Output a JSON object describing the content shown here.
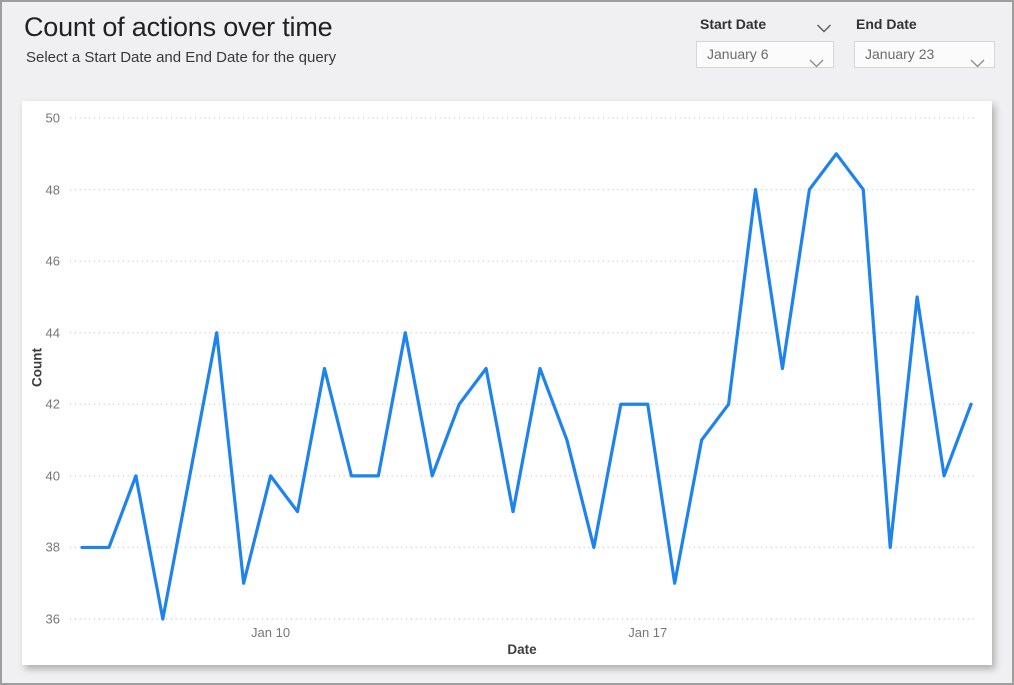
{
  "header": {
    "title": "Count of actions over time",
    "subtitle": "Select a Start Date and End Date for the query"
  },
  "slicers": {
    "start_date": {
      "label": "Start Date",
      "value": "January 6",
      "header_icon": "chevron-down"
    },
    "end_date": {
      "label": "End Date",
      "value": "January 23"
    }
  },
  "chart_data": {
    "type": "line",
    "title": "Count of actions over time",
    "xlabel": "Date",
    "ylabel": "Count",
    "ylim": [
      36,
      50
    ],
    "yticks": [
      50,
      48,
      46,
      44,
      42,
      40,
      38,
      36
    ],
    "x_ticks": [
      {
        "label": "Jan 10",
        "index": 7
      },
      {
        "label": "Jan 17",
        "index": 21
      }
    ],
    "points_per_day": 2,
    "x_range_dates": [
      "January 6",
      "January 23"
    ],
    "grid": "horizontal dotted",
    "legend": "none",
    "series": [
      {
        "name": "Count",
        "color": "#1e83ec",
        "values": [
          38,
          38,
          40,
          36,
          40,
          44,
          37,
          40,
          39,
          43,
          40,
          40,
          44,
          40,
          42,
          43,
          39,
          43,
          41,
          38,
          42,
          42,
          37,
          41,
          42,
          48,
          43,
          48,
          49,
          48,
          38,
          45,
          40,
          42
        ]
      }
    ]
  },
  "colors": {
    "line": "#1e83ec",
    "page_bg": "#f0f0f2",
    "card_bg": "#ffffff",
    "frame_border": "#9e9e9e",
    "grid_dots": "#d4d4d4",
    "tick_text": "#767676",
    "axis_title_text": "#3d3d3d"
  }
}
